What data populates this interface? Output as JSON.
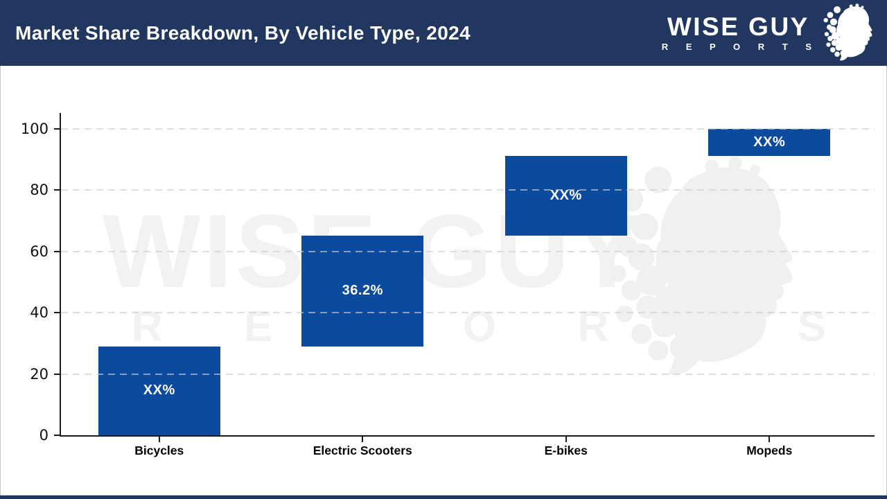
{
  "header": {
    "title": "Market Share Breakdown, By Vehicle Type, 2024",
    "logo": {
      "brand_line1": "WISE GUY",
      "brand_line2": "R E P O R T S"
    }
  },
  "watermark": {
    "line1": "WISE GUY",
    "line2": "R E P O R T S"
  },
  "colors": {
    "header_bg": "#22375f",
    "footer_bg": "#22375f",
    "bar": "#0c4a9e",
    "bar_label": "#ffffff",
    "grid": "#d9d9d9",
    "axis": "#1a1a1a",
    "watermark": "#f2f2f4"
  },
  "chart_data": {
    "type": "bar",
    "subtype": "waterfall",
    "title": "Market Share Breakdown, By Vehicle Type, 2024",
    "xlabel": "",
    "ylabel": "",
    "ylim": [
      0,
      100
    ],
    "yticks": [
      0,
      20,
      40,
      60,
      80,
      100
    ],
    "grid": "horizontal-dashed",
    "legend": "none",
    "categories": [
      "Bicycles",
      "Electric Scooters",
      "E-bikes",
      "Mopeds"
    ],
    "segments": [
      {
        "category": "Bicycles",
        "start": 0,
        "end": 29,
        "value_label": "XX%"
      },
      {
        "category": "Electric Scooters",
        "start": 29,
        "end": 65.2,
        "value": 36.2,
        "value_label": "36.2%"
      },
      {
        "category": "E-bikes",
        "start": 65.2,
        "end": 91.2,
        "value_label": "XX%"
      },
      {
        "category": "Mopeds",
        "start": 91.2,
        "end": 100,
        "value_label": "XX%"
      }
    ]
  }
}
